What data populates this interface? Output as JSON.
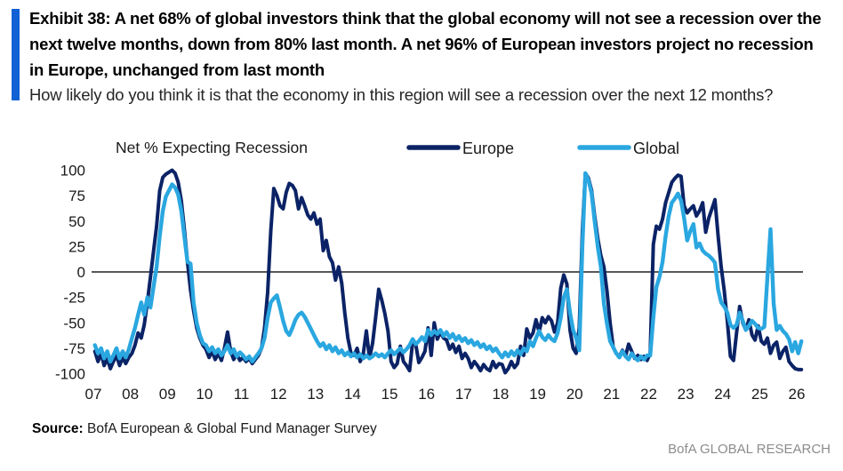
{
  "exhibit": {
    "title": "Exhibit 38: A net 68% of global investors think that the global economy will not see a recession over the next twelve months, down from 80% last month. A net 96% of European investors project no recession in Europe, unchanged from last month",
    "subtitle": "How likely do you think it is that the economy in this region will see a recession over the next 12 months?"
  },
  "footer": {
    "source_label": "Source:",
    "source_text": " BofA European & Global Fund Manager Survey",
    "brand": "BofA GLOBAL RESEARCH"
  },
  "colors": {
    "accent_bar": "#1161d4",
    "europe": "#0b2366",
    "global": "#2aa7e0",
    "zero_line": "#404040",
    "axis_text": "#1a1a1a"
  },
  "chart_data": {
    "type": "line",
    "title": "Net % Expecting Recession",
    "legend_position": "top",
    "grid": "zero-line-only",
    "x_start_year": 2007,
    "frequency": "monthly",
    "x_tick_labels": [
      "07",
      "08",
      "09",
      "10",
      "11",
      "12",
      "13",
      "14",
      "15",
      "16",
      "17",
      "18",
      "19",
      "20",
      "21",
      "22",
      "23",
      "24",
      "25",
      "26"
    ],
    "y_ticks": [
      100,
      75,
      50,
      25,
      0,
      -25,
      -50,
      -75,
      -100
    ],
    "ylim": [
      -110,
      110
    ],
    "series": [
      {
        "name": "Europe",
        "color": "#0b2366",
        "start": "2007-01",
        "values": [
          -78,
          -88,
          -80,
          -92,
          -85,
          -95,
          -88,
          -82,
          -92,
          -84,
          -90,
          -84,
          -80,
          -72,
          -60,
          -65,
          -52,
          -30,
          -5,
          20,
          45,
          80,
          93,
          96,
          98,
          100,
          97,
          88,
          70,
          42,
          10,
          -18,
          -38,
          -55,
          -65,
          -72,
          -76,
          -84,
          -78,
          -86,
          -80,
          -87,
          -75,
          -59,
          -78,
          -86,
          -81,
          -87,
          -84,
          -88,
          -85,
          -90,
          -86,
          -82,
          -75,
          -55,
          -20,
          40,
          82,
          75,
          65,
          62,
          78,
          87,
          85,
          80,
          62,
          73,
          65,
          56,
          52,
          58,
          47,
          52,
          21,
          31,
          15,
          9,
          -8,
          5,
          -11,
          -40,
          -65,
          -80,
          -82,
          -75,
          -88,
          -80,
          -58,
          -85,
          -70,
          -45,
          -17,
          -28,
          -41,
          -58,
          -88,
          -94,
          -90,
          -73,
          -88,
          -92,
          -97,
          -68,
          -71,
          -89,
          -84,
          -78,
          -55,
          -82,
          -50,
          -66,
          -59,
          -65,
          -67,
          -76,
          -71,
          -79,
          -73,
          -85,
          -80,
          -85,
          -94,
          -88,
          -92,
          -97,
          -91,
          -95,
          -97,
          -88,
          -94,
          -90,
          -91,
          -99,
          -95,
          -88,
          -94,
          -90,
          -73,
          -82,
          -56,
          -65,
          -60,
          -47,
          -59,
          -45,
          -50,
          -44,
          -48,
          -59,
          -50,
          -16,
          -3,
          -12,
          -57,
          -75,
          -80,
          -55,
          40,
          97,
          92,
          80,
          55,
          33,
          16,
          5,
          -19,
          -50,
          -74,
          -80,
          -83,
          -77,
          -83,
          -71,
          -78,
          -85,
          -82,
          -86,
          -83,
          -87,
          -80,
          27,
          45,
          42,
          52,
          68,
          78,
          88,
          92,
          95,
          94,
          65,
          58,
          62,
          65,
          55,
          60,
          68,
          39,
          53,
          62,
          71,
          36,
          5,
          -18,
          -48,
          -83,
          -87,
          -60,
          -34,
          -50,
          -57,
          -47,
          -62,
          -67,
          -53,
          -68,
          -71,
          -65,
          -80,
          -72,
          -69,
          -85,
          -78,
          -74,
          -88,
          -92,
          -95,
          -96,
          -96
        ]
      },
      {
        "name": "Global",
        "color": "#2aa7e0",
        "start": "2007-01",
        "values": [
          -72,
          -80,
          -75,
          -85,
          -78,
          -88,
          -82,
          -75,
          -85,
          -78,
          -84,
          -76,
          -65,
          -55,
          -42,
          -30,
          -42,
          -25,
          -35,
          -15,
          5,
          35,
          60,
          74,
          80,
          86,
          83,
          76,
          60,
          35,
          10,
          8,
          -30,
          -50,
          -62,
          -70,
          -72,
          -78,
          -74,
          -80,
          -76,
          -82,
          -78,
          -72,
          -80,
          -76,
          -83,
          -79,
          -82,
          -86,
          -83,
          -88,
          -84,
          -80,
          -75,
          -65,
          -45,
          -30,
          -26,
          -23,
          -35,
          -48,
          -58,
          -62,
          -55,
          -47,
          -42,
          -40,
          -44,
          -50,
          -56,
          -62,
          -68,
          -73,
          -70,
          -76,
          -72,
          -78,
          -74,
          -80,
          -77,
          -82,
          -79,
          -83,
          -80,
          -84,
          -81,
          -85,
          -82,
          -85,
          -83,
          -80,
          -83,
          -81,
          -84,
          -80,
          -77,
          -81,
          -78,
          -75,
          -79,
          -76,
          -72,
          -66,
          -71,
          -68,
          -64,
          -68,
          -57,
          -62,
          -58,
          -61,
          -57,
          -63,
          -59,
          -65,
          -61,
          -67,
          -63,
          -68,
          -65,
          -70,
          -67,
          -72,
          -69,
          -74,
          -71,
          -76,
          -73,
          -78,
          -75,
          -80,
          -84,
          -79,
          -83,
          -78,
          -82,
          -77,
          -81,
          -75,
          -78,
          -68,
          -73,
          -65,
          -58,
          -64,
          -67,
          -62,
          -66,
          -68,
          -60,
          -45,
          -25,
          -17,
          -40,
          -57,
          -65,
          -77,
          25,
          97,
          90,
          77,
          50,
          25,
          5,
          -31,
          -51,
          -68,
          -74,
          -80,
          -84,
          -78,
          -83,
          -86,
          -80,
          -84,
          -87,
          -83,
          -86,
          -82,
          -82,
          -45,
          -15,
          -5,
          10,
          35,
          55,
          68,
          72,
          77,
          70,
          53,
          31,
          40,
          47,
          24,
          28,
          21,
          18,
          16,
          13,
          9,
          -17,
          -30,
          -34,
          -40,
          -52,
          -55,
          -52,
          -40,
          -48,
          -57,
          -53,
          -48,
          -51,
          -55,
          -56,
          -54,
          -5,
          42,
          -31,
          -57,
          -53,
          -58,
          -61,
          -66,
          -78,
          -69,
          -80,
          -68
        ]
      }
    ]
  }
}
